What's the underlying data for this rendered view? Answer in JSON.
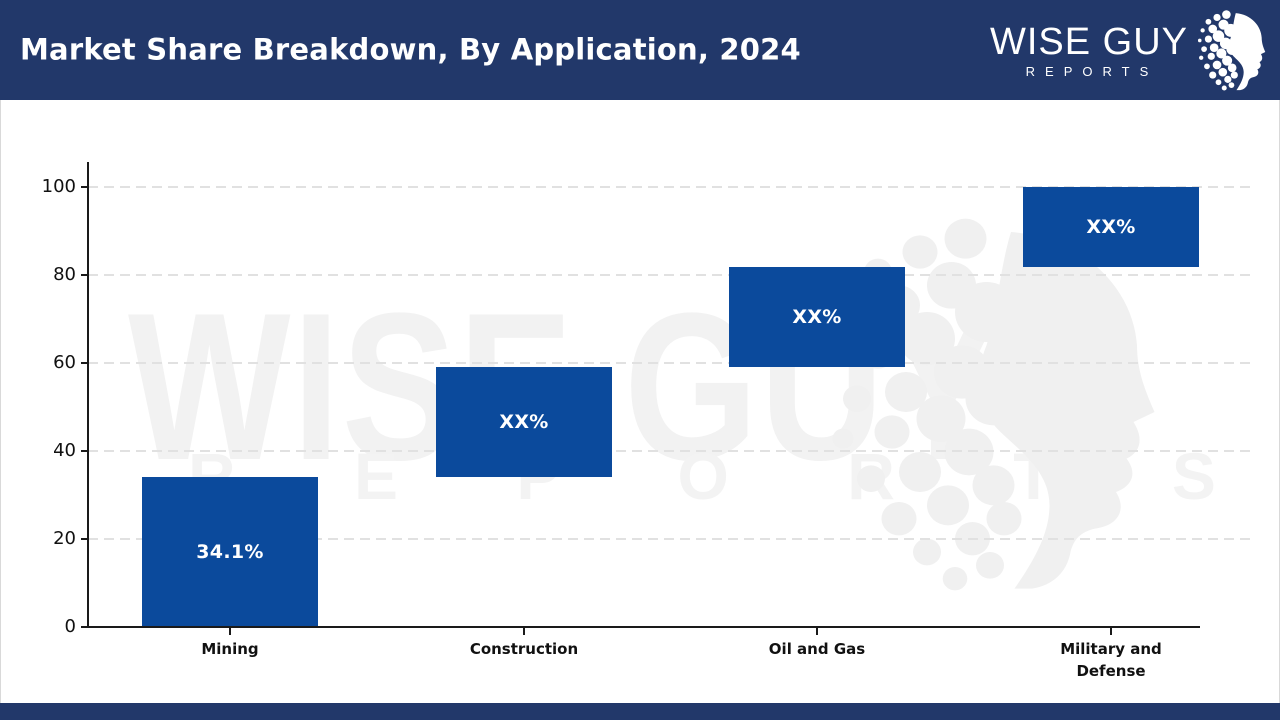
{
  "header": {
    "title": "Market Share Breakdown, By Application, 2024",
    "logo": {
      "name": "WISE GUY",
      "tagline": "REPORTS"
    }
  },
  "watermark": {
    "big_text": "WISE GUY",
    "small_text": "R E P O R T S"
  },
  "chart_data": {
    "type": "bar",
    "subtype": "waterfall",
    "title": "Market Share Breakdown, By Application, 2024",
    "categories": [
      "Mining",
      "Construction",
      "Oil and Gas",
      "Military and Defense"
    ],
    "segments": [
      {
        "category": "Mining",
        "start": 0,
        "end": 34.1,
        "label": "34.1%"
      },
      {
        "category": "Construction",
        "start": 34.1,
        "end": 59.2,
        "label": "XX%"
      },
      {
        "category": "Oil and Gas",
        "start": 59.2,
        "end": 81.8,
        "label": "XX%"
      },
      {
        "category": "Military and Defense",
        "start": 81.8,
        "end": 100,
        "label": "XX%"
      }
    ],
    "y_ticks": [
      0,
      20,
      40,
      60,
      80,
      100
    ],
    "ylim": [
      0,
      105.7
    ],
    "xlabel": "",
    "ylabel": "",
    "grid": "horizontal-dashed",
    "legend": "none",
    "bar_color": "#0b4a9c",
    "bar_label_color": "#ffffff",
    "colors": {
      "header_bg": "#22386a",
      "footer_bg": "#22386a",
      "title_text": "#ffffff",
      "axis": "#1a1a1a",
      "gridline": "#e1e1e1",
      "watermark": "#f2f2f2",
      "background": "#ffffff"
    }
  }
}
